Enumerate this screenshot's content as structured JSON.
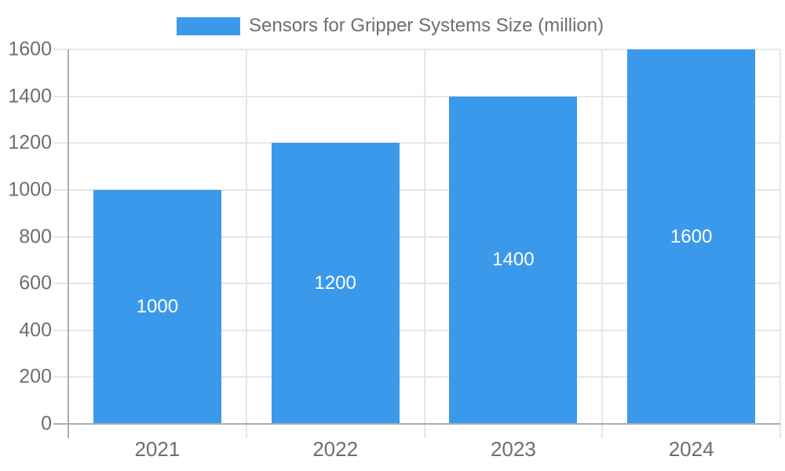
{
  "chart_data": {
    "type": "bar",
    "title": "Sensors for Gripper Systems Size (million)",
    "categories": [
      "2021",
      "2022",
      "2023",
      "2024"
    ],
    "series": [
      {
        "name": "Sensors for Gripper Systems Size (million)",
        "values": [
          1000,
          1200,
          1400,
          1600
        ]
      }
    ],
    "bar_value_labels": [
      "1000",
      "1200",
      "1400",
      "1600"
    ],
    "xlabel": "",
    "ylabel": "",
    "ylim": [
      0,
      1600
    ],
    "ytick_step": 200,
    "ytick_labels": [
      "0",
      "200",
      "400",
      "600",
      "800",
      "1000",
      "1200",
      "1400",
      "1600"
    ],
    "grid": true,
    "legend_position": "top-center",
    "colors": {
      "bar": "#3b99ec",
      "bar_label_text": "#ffffff",
      "axis_text": "#6e6e6e",
      "gridline": "#e6e6e6",
      "axis_line": "#adadad",
      "background": "#ffffff"
    }
  }
}
